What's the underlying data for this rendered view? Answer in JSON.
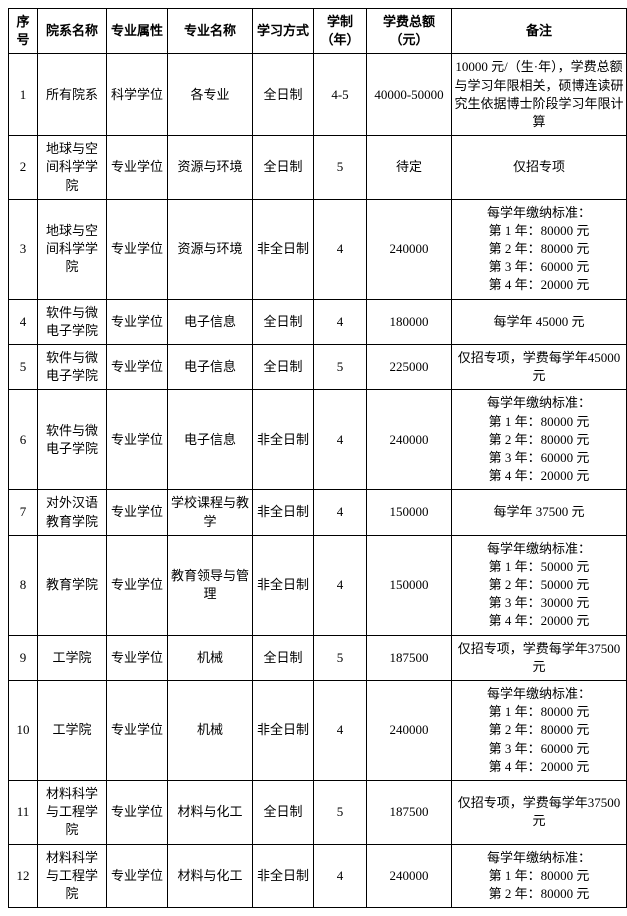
{
  "table": {
    "columns": [
      "序号",
      "院系名称",
      "专业属性",
      "专业名称",
      "学习方式",
      "学制（年）",
      "学费总额（元）",
      "备注"
    ],
    "rows": [
      {
        "seq": "1",
        "school": "所有院系",
        "degree": "科学学位",
        "major": "各专业",
        "mode": "全日制",
        "years": "4-5",
        "fee": "40000-50000",
        "remark": "10000 元/（生·年），学费总额与学习年限相关，硕博连读研究生依据博士阶段学习年限计算"
      },
      {
        "seq": "2",
        "school": "地球与空间科学学院",
        "degree": "专业学位",
        "major": "资源与环境",
        "mode": "全日制",
        "years": "5",
        "fee": "待定",
        "remark": "仅招专项"
      },
      {
        "seq": "3",
        "school": "地球与空间科学学院",
        "degree": "专业学位",
        "major": "资源与环境",
        "mode": "非全日制",
        "years": "4",
        "fee": "240000",
        "remark": "每学年缴纳标准：\n第 1 年：80000 元\n第 2 年：80000 元\n第 3 年：60000 元\n第 4 年：20000 元"
      },
      {
        "seq": "4",
        "school": "软件与微电子学院",
        "degree": "专业学位",
        "major": "电子信息",
        "mode": "全日制",
        "years": "4",
        "fee": "180000",
        "remark": "每学年 45000 元"
      },
      {
        "seq": "5",
        "school": "软件与微电子学院",
        "degree": "专业学位",
        "major": "电子信息",
        "mode": "全日制",
        "years": "5",
        "fee": "225000",
        "remark": "仅招专项，学费每学年45000 元"
      },
      {
        "seq": "6",
        "school": "软件与微电子学院",
        "degree": "专业学位",
        "major": "电子信息",
        "mode": "非全日制",
        "years": "4",
        "fee": "240000",
        "remark": "每学年缴纳标准：\n第 1 年：80000 元\n第 2 年：80000 元\n第 3 年：60000 元\n第 4 年：20000 元"
      },
      {
        "seq": "7",
        "school": "对外汉语教育学院",
        "degree": "专业学位",
        "major": "学校课程与教学",
        "mode": "非全日制",
        "years": "4",
        "fee": "150000",
        "remark": "每学年 37500 元"
      },
      {
        "seq": "8",
        "school": "教育学院",
        "degree": "专业学位",
        "major": "教育领导与管理",
        "mode": "非全日制",
        "years": "4",
        "fee": "150000",
        "remark": "每学年缴纳标准：\n第 1 年：50000 元\n第 2 年：50000 元\n第 3 年：30000 元\n第 4 年：20000 元"
      },
      {
        "seq": "9",
        "school": "工学院",
        "degree": "专业学位",
        "major": "机械",
        "mode": "全日制",
        "years": "5",
        "fee": "187500",
        "remark": "仅招专项，学费每学年37500 元"
      },
      {
        "seq": "10",
        "school": "工学院",
        "degree": "专业学位",
        "major": "机械",
        "mode": "非全日制",
        "years": "4",
        "fee": "240000",
        "remark": "每学年缴纳标准：\n第 1 年：80000 元\n第 2 年：80000 元\n第 3 年：60000 元\n第 4 年：20000 元"
      },
      {
        "seq": "11",
        "school": "材料科学与工程学院",
        "degree": "专业学位",
        "major": "材料与化工",
        "mode": "全日制",
        "years": "5",
        "fee": "187500",
        "remark": "仅招专项，学费每学年37500 元"
      },
      {
        "seq": "12",
        "school": "材料科学与工程学院",
        "degree": "专业学位",
        "major": "材料与化工",
        "mode": "非全日制",
        "years": "4",
        "fee": "240000",
        "remark": "每学年缴纳标准：\n第 1 年：80000 元\n第 2 年：80000 元"
      }
    ]
  }
}
